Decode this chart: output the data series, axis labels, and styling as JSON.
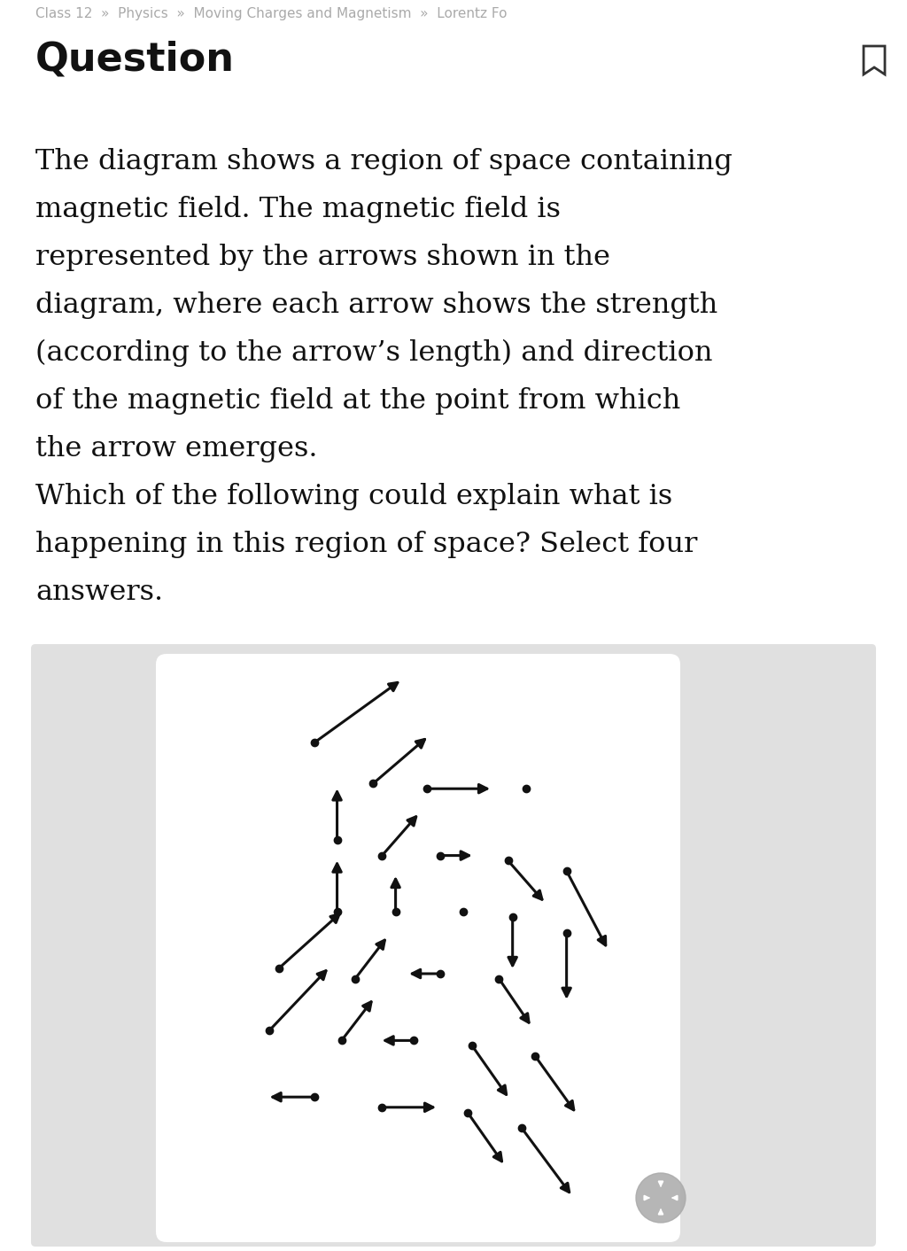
{
  "breadcrumb": "Class 12  »  Physics  »  Moving Charges and Magnetism  »  Lorentz Fo",
  "title": "Question",
  "body_lines": [
    "The diagram shows a region of space containing",
    "magnetic field. The magnetic field is",
    "represented by the arrows shown in the",
    "diagram, where each arrow shows the strength",
    "(according to the arrow’s length) and direction",
    "of the magnetic field at the point from which",
    "the arrow emerges.",
    "Which of the following could explain what is",
    "happening in this region of space? Select four",
    "answers."
  ],
  "page_bg": "#ffffff",
  "outer_box_color": "#e0e0e0",
  "inner_box_color": "#ffffff",
  "arrow_color": "#111111",
  "arrows": [
    [
      0.27,
      0.9,
      0.46,
      1.02
    ],
    [
      0.4,
      0.82,
      0.52,
      0.91
    ],
    [
      0.52,
      0.81,
      0.66,
      0.81
    ],
    [
      0.74,
      0.81,
      0.74,
      0.81
    ],
    [
      0.32,
      0.71,
      0.32,
      0.81
    ],
    [
      0.42,
      0.68,
      0.5,
      0.76
    ],
    [
      0.55,
      0.68,
      0.62,
      0.68
    ],
    [
      0.7,
      0.67,
      0.78,
      0.59
    ],
    [
      0.83,
      0.65,
      0.92,
      0.5
    ],
    [
      0.32,
      0.57,
      0.32,
      0.67
    ],
    [
      0.45,
      0.57,
      0.45,
      0.64
    ],
    [
      0.6,
      0.57,
      0.6,
      0.57
    ],
    [
      0.71,
      0.56,
      0.71,
      0.46
    ],
    [
      0.83,
      0.53,
      0.83,
      0.4
    ],
    [
      0.19,
      0.46,
      0.33,
      0.57
    ],
    [
      0.36,
      0.44,
      0.43,
      0.52
    ],
    [
      0.55,
      0.45,
      0.48,
      0.45
    ],
    [
      0.68,
      0.44,
      0.75,
      0.35
    ],
    [
      0.17,
      0.34,
      0.3,
      0.46
    ],
    [
      0.33,
      0.32,
      0.4,
      0.4
    ],
    [
      0.49,
      0.32,
      0.42,
      0.32
    ],
    [
      0.62,
      0.31,
      0.7,
      0.21
    ],
    [
      0.76,
      0.29,
      0.85,
      0.18
    ],
    [
      0.27,
      0.21,
      0.17,
      0.21
    ],
    [
      0.42,
      0.19,
      0.54,
      0.19
    ],
    [
      0.61,
      0.18,
      0.69,
      0.08
    ],
    [
      0.73,
      0.15,
      0.84,
      0.02
    ]
  ]
}
